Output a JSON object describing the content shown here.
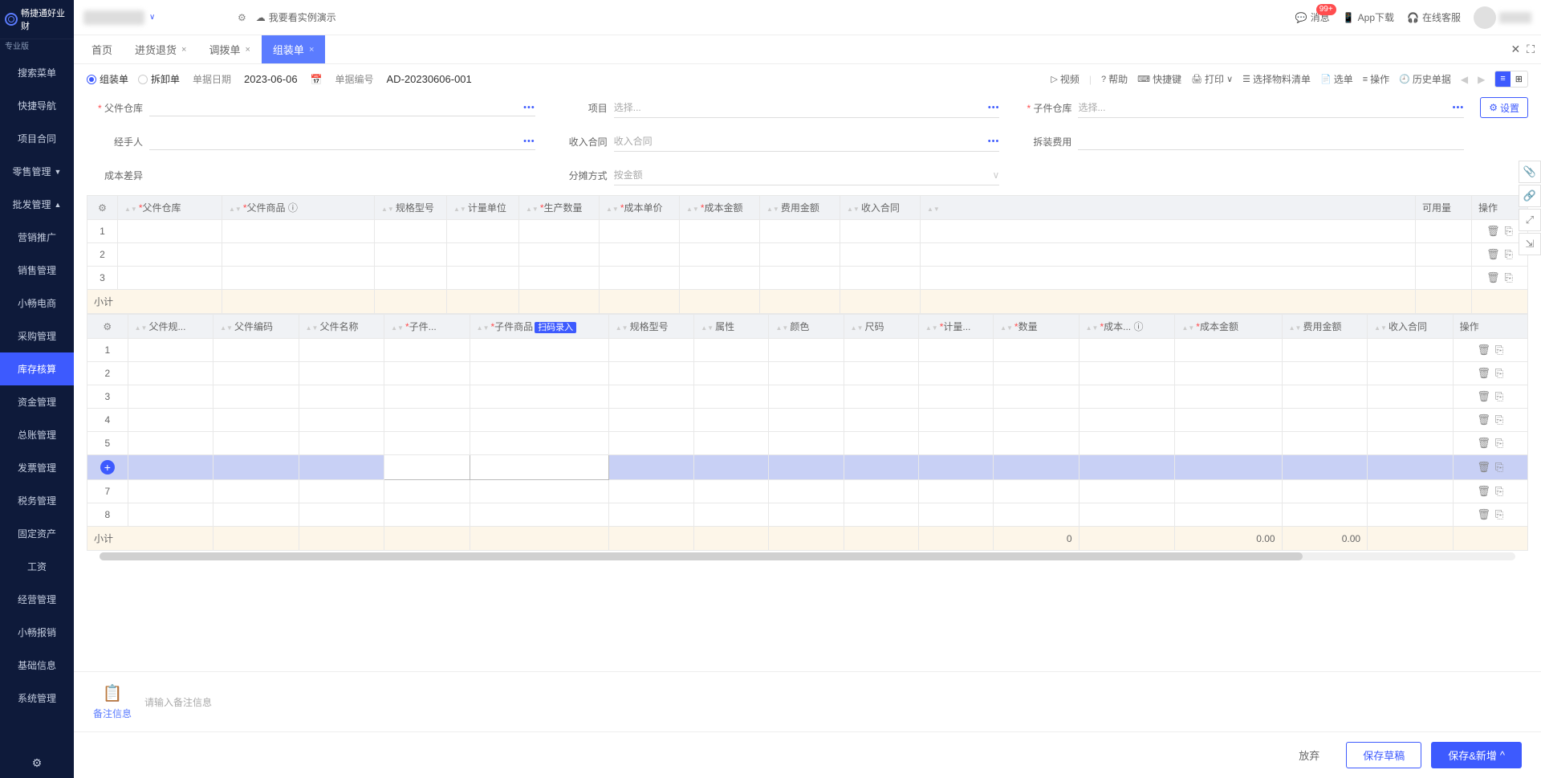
{
  "brand": {
    "name": "畅捷通好业财",
    "edition": "专业版"
  },
  "sidebar": {
    "items": [
      {
        "label": "搜索菜单"
      },
      {
        "label": "快捷导航"
      },
      {
        "label": "项目合同"
      },
      {
        "label": "零售管理",
        "caret": "▼"
      },
      {
        "label": "批发管理",
        "caret": "▲"
      },
      {
        "label": "营销推广",
        "indent": true
      },
      {
        "label": "销售管理",
        "indent": true
      },
      {
        "label": "小畅电商"
      },
      {
        "label": "采购管理"
      },
      {
        "label": "库存核算",
        "active": true
      },
      {
        "label": "资金管理"
      },
      {
        "label": "总账管理"
      },
      {
        "label": "发票管理"
      },
      {
        "label": "税务管理"
      },
      {
        "label": "固定资产"
      },
      {
        "label": "工资"
      },
      {
        "label": "经营管理"
      },
      {
        "label": "小畅报销"
      },
      {
        "label": "基础信息"
      },
      {
        "label": "系统管理"
      }
    ]
  },
  "topbar": {
    "demo": "我要看实例演示",
    "msg": "消息",
    "msg_badge": "99+",
    "app": "App下载",
    "service": "在线客服"
  },
  "tabs": [
    {
      "label": "首页"
    },
    {
      "label": "进货退货",
      "closable": true
    },
    {
      "label": "调拨单",
      "closable": true
    },
    {
      "label": "组装单",
      "closable": true,
      "active": true
    }
  ],
  "formbar": {
    "radio_assembly": "组装单",
    "radio_disassembly": "拆卸单",
    "date_label": "单据日期",
    "date_value": "2023-06-06",
    "bill_no_label": "单据编号",
    "bill_no_value": "AD-20230606-001",
    "actions": {
      "video": "视频",
      "help": "帮助",
      "shortcut": "快捷键",
      "print": "打印",
      "select_bom": "选择物料清单",
      "select_bill": "选单",
      "ops": "操作",
      "history": "历史单据"
    }
  },
  "fields": {
    "parent_wh": "父件仓库",
    "project": "项目",
    "child_wh": "子件仓库",
    "handler": "经手人",
    "income_contract": "收入合同",
    "assembly_fee": "拆装费用",
    "cost_diff": "成本差异",
    "alloc_method": "分摊方式",
    "ph_select": "选择...",
    "ph_income": "收入合同",
    "ph_amount": "按金额",
    "settings_btn": "设置"
  },
  "table1": {
    "cols": {
      "parent_wh": "父件仓库",
      "parent_prod": "父件商品",
      "spec": "规格型号",
      "uom": "计量单位",
      "qty": "生产数量",
      "unit_cost": "成本单价",
      "cost_amt": "成本金额",
      "fee_amt": "费用金额",
      "income": "收入合同",
      "avail": "可用量",
      "ops": "操作"
    },
    "subtotal": "小计"
  },
  "table2": {
    "cols": {
      "parent_spec": "父件规...",
      "parent_code": "父件编码",
      "parent_name": "父件名称",
      "child_wh": "子件...",
      "child_prod": "子件商品",
      "scan": "扫码录入",
      "spec": "规格型号",
      "attr": "属性",
      "color": "颜色",
      "size": "尺码",
      "uom": "计量...",
      "qty": "数量",
      "unit_cost": "成本...",
      "cost_amt": "成本金额",
      "fee_amt": "费用金额",
      "income": "收入合同",
      "ops": "操作"
    },
    "subtotal": "小计",
    "subtotal_qty": "0",
    "subtotal_cost": "0.00",
    "subtotal_fee": "0.00"
  },
  "remarks": {
    "label": "备注信息",
    "placeholder": "请输入备注信息"
  },
  "footer": {
    "discard": "放弃",
    "save_draft": "保存草稿",
    "save_new": "保存&新增"
  }
}
